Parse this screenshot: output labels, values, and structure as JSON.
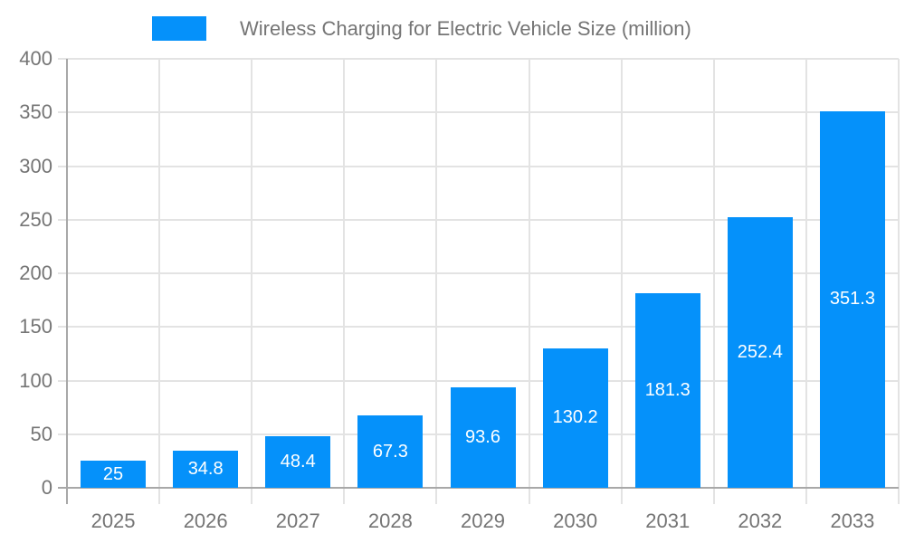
{
  "chart_data": {
    "type": "bar",
    "title": "Wireless Charging for Electric Vehicle Size (million)",
    "categories": [
      "2025",
      "2026",
      "2027",
      "2028",
      "2029",
      "2030",
      "2031",
      "2032",
      "2033"
    ],
    "series": [
      {
        "name": "Wireless Charging for Electric Vehicle Size (million)",
        "values": [
          25,
          34.8,
          48.4,
          67.3,
          93.6,
          130.2,
          181.3,
          252.4,
          351.3
        ]
      }
    ],
    "value_labels": [
      "25",
      "34.8",
      "48.4",
      "67.3",
      "93.6",
      "130.2",
      "181.3",
      "252.4",
      "351.3"
    ],
    "xlabel": "",
    "ylabel": "",
    "ylim": [
      0,
      400
    ],
    "ytick_step": 50,
    "yticks": [
      0,
      50,
      100,
      150,
      200,
      250,
      300,
      350,
      400
    ],
    "grid": true,
    "legend_position": "top",
    "colors": {
      "bar": "#0591fa",
      "value_label": "#ffffff",
      "axis_text": "#757575",
      "grid": "#e3e3e3",
      "axis_line": "#a8a8a8",
      "background": "#ffffff"
    }
  }
}
